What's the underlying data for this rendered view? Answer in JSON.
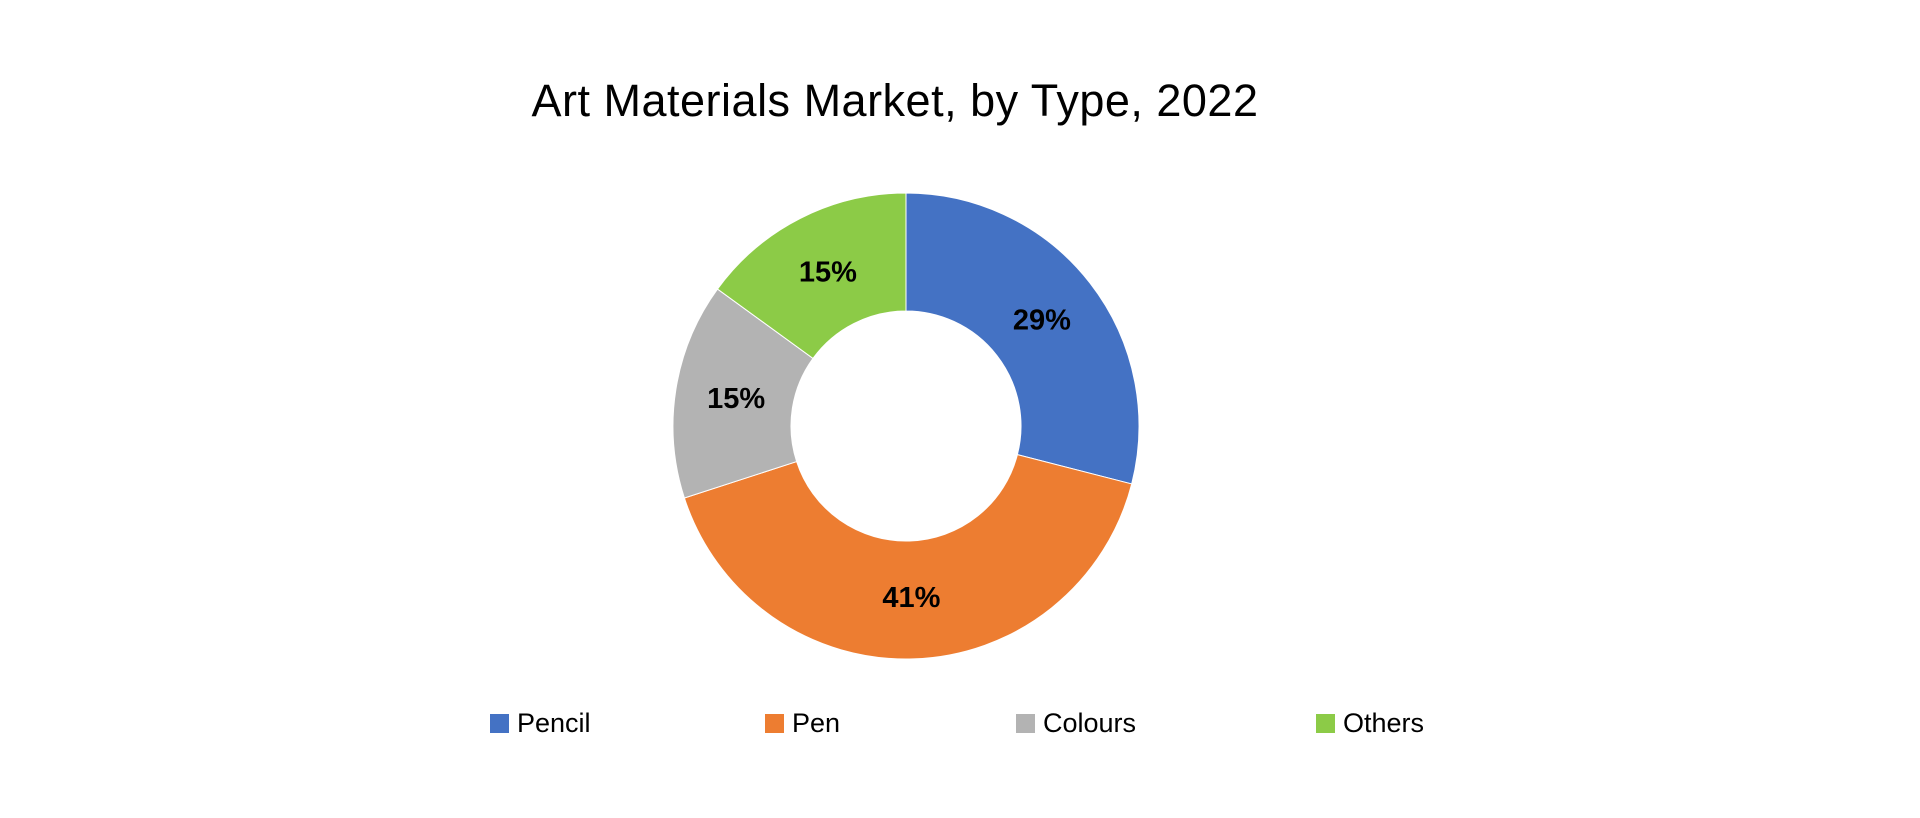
{
  "title": "Art Materials Market, by Type, 2022",
  "chart_data": {
    "type": "pie",
    "subtype": "donut",
    "title": "Art Materials Market, by Type, 2022",
    "unit": "percent",
    "start_angle_deg": 0,
    "direction": "clockwise",
    "hole_ratio": 0.49,
    "legend_position": "bottom",
    "data_label_style": "bold black percent inside ring",
    "slices": [
      {
        "label": "Pencil",
        "value": 29,
        "display": "29%",
        "color": "#4472C4"
      },
      {
        "label": "Pen",
        "value": 41,
        "display": "41%",
        "color": "#ED7D31"
      },
      {
        "label": "Colours",
        "value": 15,
        "display": "15%",
        "color": "#B3B3B3"
      },
      {
        "label": "Others",
        "value": 15,
        "display": "15%",
        "color": "#8CCB47"
      }
    ],
    "background": "#ffffff"
  }
}
